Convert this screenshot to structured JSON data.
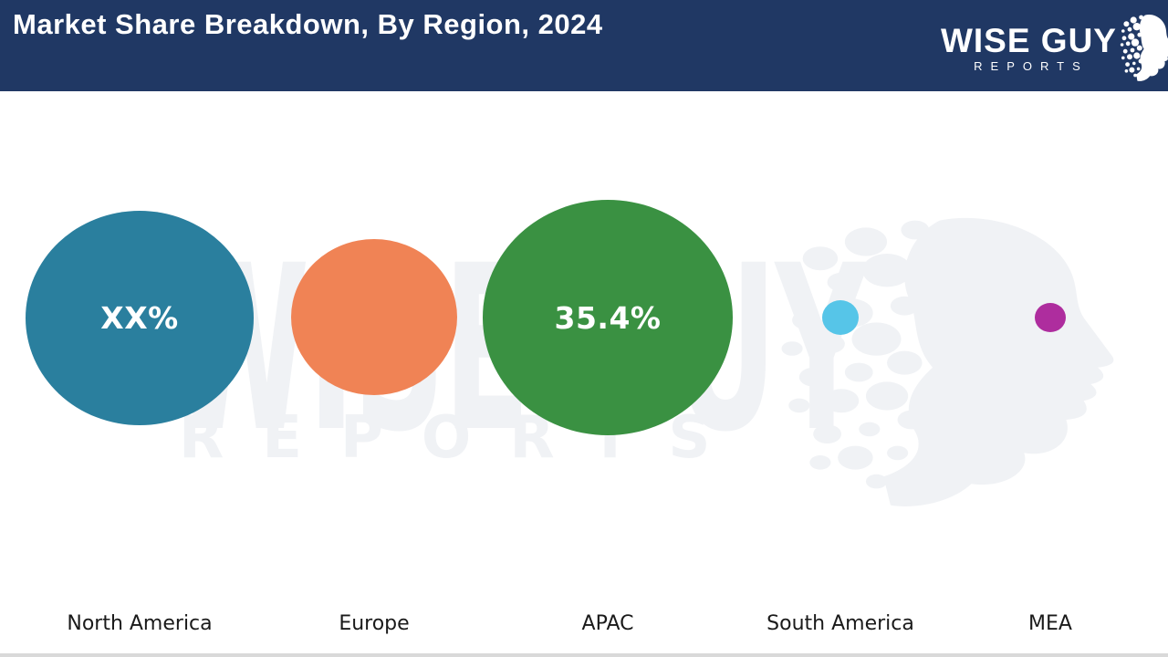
{
  "header": {
    "title": "Market Share Breakdown, By Region, 2024",
    "bg_color": "#203864",
    "logo": {
      "line1": "WISE GUY",
      "line2": "REPORTS"
    }
  },
  "watermark": {
    "line1": "WISE GUY",
    "line2": "REPORTS"
  },
  "chart_data": {
    "type": "bubble",
    "title": "Market Share Breakdown, By Region, 2024",
    "categories": [
      "North America",
      "Europe",
      "APAC",
      "South America",
      "MEA"
    ],
    "series": [
      {
        "name": "North America",
        "label": "XX%",
        "value": null,
        "color": "#2a7f9e",
        "radius_px": 125
      },
      {
        "name": "Europe",
        "label": "",
        "value": null,
        "color": "#f08355",
        "radius_px": 91
      },
      {
        "name": "APAC",
        "label": "35.4%",
        "value": 35.4,
        "color": "#3a9142",
        "radius_px": 137
      },
      {
        "name": "South America",
        "label": "",
        "value": null,
        "color": "#56c5e8",
        "radius_px": 20
      },
      {
        "name": "MEA",
        "label": "",
        "value": null,
        "color": "#ae2d9e",
        "radius_px": 17
      }
    ],
    "legend_position": "bottom",
    "grid": false
  },
  "colors": {
    "header_navy": "#203864",
    "watermark_gray": "#f0f2f5",
    "label_text": "#1a1a1a",
    "bottom_strip": "#d9d9d9"
  }
}
